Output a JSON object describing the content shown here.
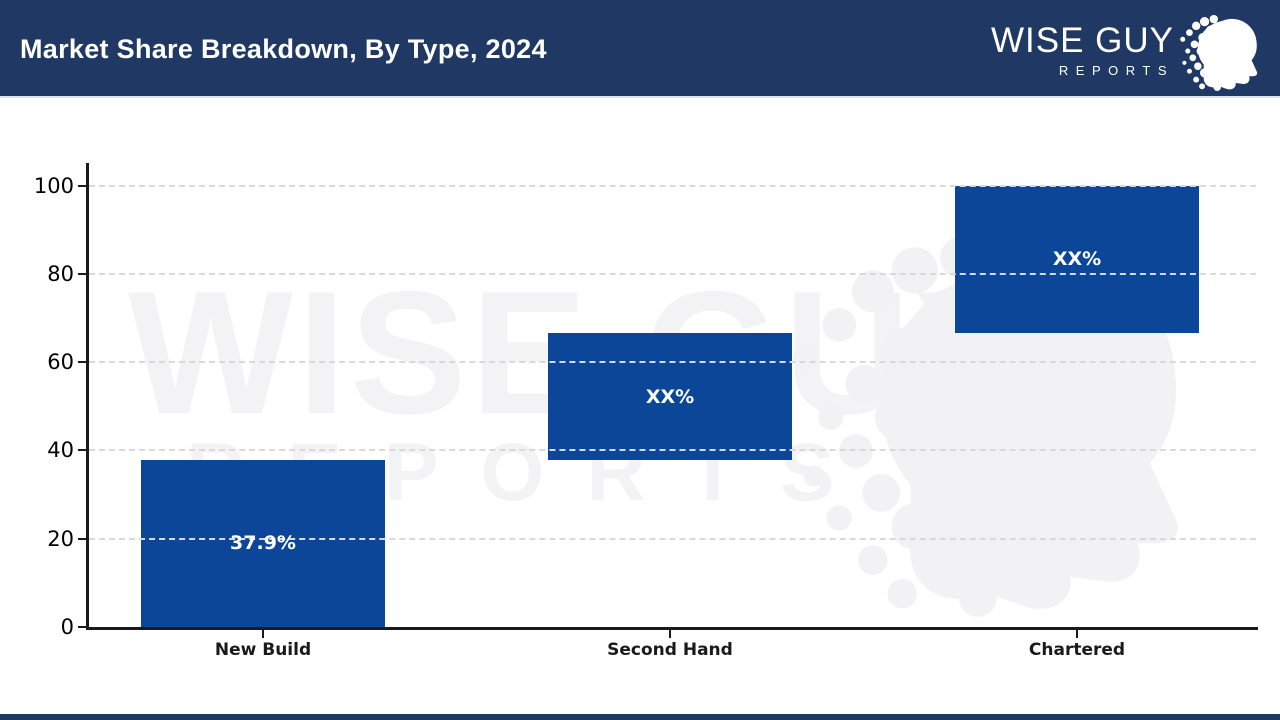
{
  "header": {
    "title": "Market Share Breakdown, By Type, 2024",
    "logo": {
      "line1": "WISE GUY",
      "line2": "REPORTS"
    }
  },
  "watermark": {
    "line1": "WISE GUY",
    "line2": "REPORTS"
  },
  "colors": {
    "header_bg": "#1f3864",
    "bar": "#0b4699",
    "bar_label": "#ffffff",
    "gridline": "#d9d9d9",
    "axis": "#1a1a1a",
    "watermark": "#f3f3f5"
  },
  "chart_data": {
    "type": "bar",
    "variant": "waterfall",
    "title": "Market Share Breakdown, By Type, 2024",
    "xlabel": "",
    "ylabel": "",
    "categories": [
      "New Build",
      "Second Hand",
      "Chartered"
    ],
    "segments": [
      {
        "category": "New Build",
        "start": 0,
        "end": 37.9,
        "label": "37.9%"
      },
      {
        "category": "Second Hand",
        "start": 37.9,
        "end": 66.5,
        "label": "XX%"
      },
      {
        "category": "Chartered",
        "start": 66.5,
        "end": 100,
        "label": "XX%"
      }
    ],
    "yticks": [
      0,
      20,
      40,
      60,
      80,
      100
    ],
    "ylim": [
      0,
      105
    ],
    "grid": "dashed-horizontal",
    "legend": "none"
  }
}
